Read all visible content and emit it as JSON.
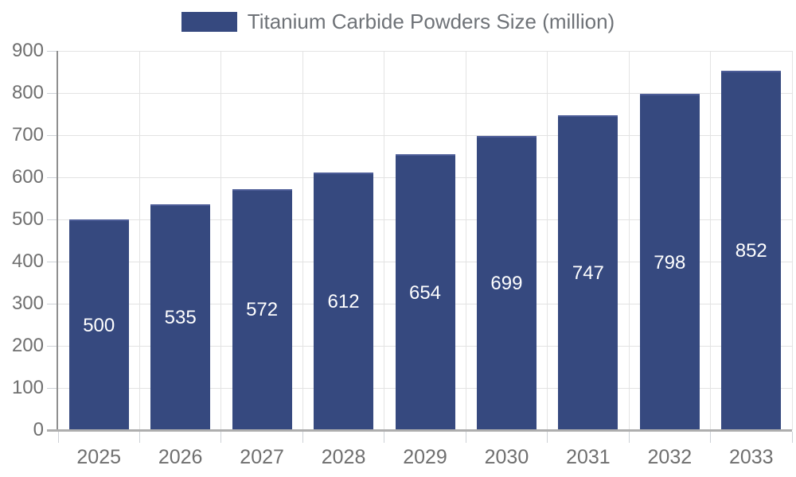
{
  "chart_data": {
    "type": "bar",
    "title": "Titanium Carbide Powders Size (million)",
    "categories": [
      "2025",
      "2026",
      "2027",
      "2028",
      "2029",
      "2030",
      "2031",
      "2032",
      "2033"
    ],
    "values": [
      500,
      535,
      572,
      612,
      654,
      699,
      747,
      798,
      852
    ],
    "xlabel": "",
    "ylabel": "",
    "ylim": [
      0,
      900
    ],
    "ytick_step": 100,
    "grid": true,
    "legend_position": "top",
    "value_labels": "inside-center",
    "colors": {
      "bar": "#36497f",
      "bar_top_edge": "#4c5c97",
      "value_label": "#ffffff",
      "axis_text": "#6f6f6f",
      "legend_text": "#6e7277",
      "gridline": "#e3e3e3",
      "tick": "#cdd1d6",
      "y_axis_line": "#8f8f8f",
      "x_axis_line": "#aeaeae",
      "background": "#ffffff"
    }
  }
}
